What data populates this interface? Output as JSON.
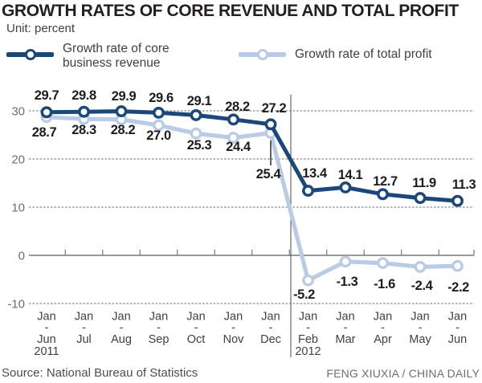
{
  "title": "GROWTH RATES OF CORE REVENUE AND TOTAL PROFIT",
  "unit": "Unit: percent",
  "legend": [
    {
      "label_lines": [
        "Growth rate of core",
        "business revenue"
      ],
      "color": "#1b4779"
    },
    {
      "label_lines": [
        "Growth rate of total profit"
      ],
      "color": "#b9cbe5"
    }
  ],
  "footer": {
    "source": "Source: National Bureau of Statistics",
    "credit": "FENG XIUXIA / CHINA DAILY"
  },
  "colors": {
    "core_revenue": "#1b4779",
    "total_profit": "#b9cbe5",
    "grid": "#8a8c8e",
    "zero_axis": "#77787b",
    "divider": "#4a4a4c",
    "data_label": "#1d1d1f"
  },
  "chart_data": {
    "type": "line",
    "title": "GROWTH RATES OF CORE REVENUE AND TOTAL PROFIT",
    "unit": "percent",
    "categories": [
      "Jan-Jun 2011",
      "Jan-Jul",
      "Jan-Aug",
      "Jan-Sep",
      "Jan-Oct",
      "Jan-Nov",
      "Jan-Dec",
      "Jan-Feb 2012",
      "Jan-Mar",
      "Jan-Apr",
      "Jan-May",
      "Jan-Jun"
    ],
    "x_tick_lines": [
      [
        "Jan",
        "-",
        "Jun",
        "2011"
      ],
      [
        "Jan",
        "-",
        "Jul"
      ],
      [
        "Jan",
        "-",
        "Aug"
      ],
      [
        "Jan",
        "-",
        "Sep"
      ],
      [
        "Jan",
        "-",
        "Oct"
      ],
      [
        "Jan",
        "-",
        "Nov"
      ],
      [
        "Jan",
        "-",
        "Dec"
      ],
      [
        "Jan",
        "-",
        "Feb",
        "2012"
      ],
      [
        "Jan",
        "-",
        "Mar"
      ],
      [
        "Jan",
        "-",
        "Apr"
      ],
      [
        "Jan",
        "-",
        "May"
      ],
      [
        "Jan",
        "-",
        "Jun"
      ]
    ],
    "series": [
      {
        "name": "Growth rate of core business revenue",
        "color": "#1b4779",
        "values": [
          29.7,
          29.8,
          29.9,
          29.6,
          29.1,
          28.2,
          27.2,
          13.4,
          14.1,
          12.7,
          11.9,
          11.3
        ]
      },
      {
        "name": "Growth rate of total profit",
        "color": "#b9cbe5",
        "values": [
          28.7,
          28.3,
          28.2,
          27.0,
          25.3,
          24.4,
          25.4,
          -5.2,
          -1.3,
          -1.6,
          -2.4,
          -2.2
        ]
      }
    ],
    "ylim": [
      -10,
      30
    ],
    "yticks": [
      30,
      20,
      10,
      0,
      -10
    ],
    "grid": "horizontal-dashed",
    "legend_position": "top",
    "divider_after_index": 6,
    "source": "Source: National Bureau of Statistics",
    "credit": "FENG XIUXIA / CHINA DAILY"
  }
}
